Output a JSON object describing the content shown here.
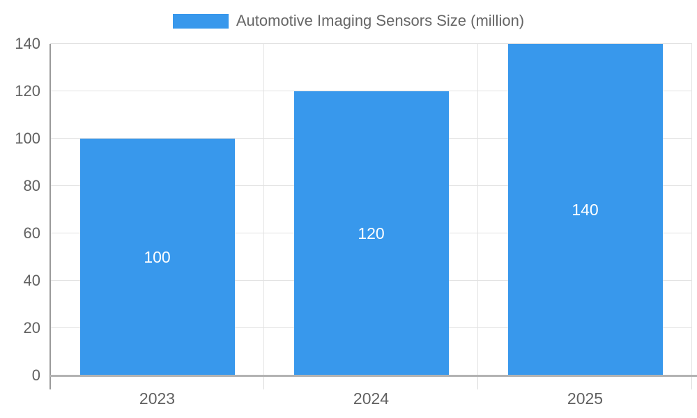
{
  "chart_data": {
    "type": "bar",
    "title": "Automotive Imaging Sensors Size (million)",
    "categories": [
      "2023",
      "2024",
      "2025"
    ],
    "values": [
      100,
      120,
      140
    ],
    "value_labels": [
      "100",
      "120",
      "140"
    ],
    "ytick_labels": [
      "0",
      "20",
      "40",
      "60",
      "80",
      "100",
      "120",
      "140"
    ],
    "yticks": [
      0,
      20,
      40,
      60,
      80,
      100,
      120,
      140
    ],
    "ylim": [
      0,
      140
    ],
    "xlabel": "",
    "ylabel": "",
    "grid": true,
    "legend_position": "top-center",
    "colors": {
      "bar": "#3898ec",
      "legend_text": "#666666",
      "axis_label": "#616161",
      "gridline": "#e2e2e2",
      "axis_line": "#999999",
      "value_label": "#ffffff"
    }
  }
}
